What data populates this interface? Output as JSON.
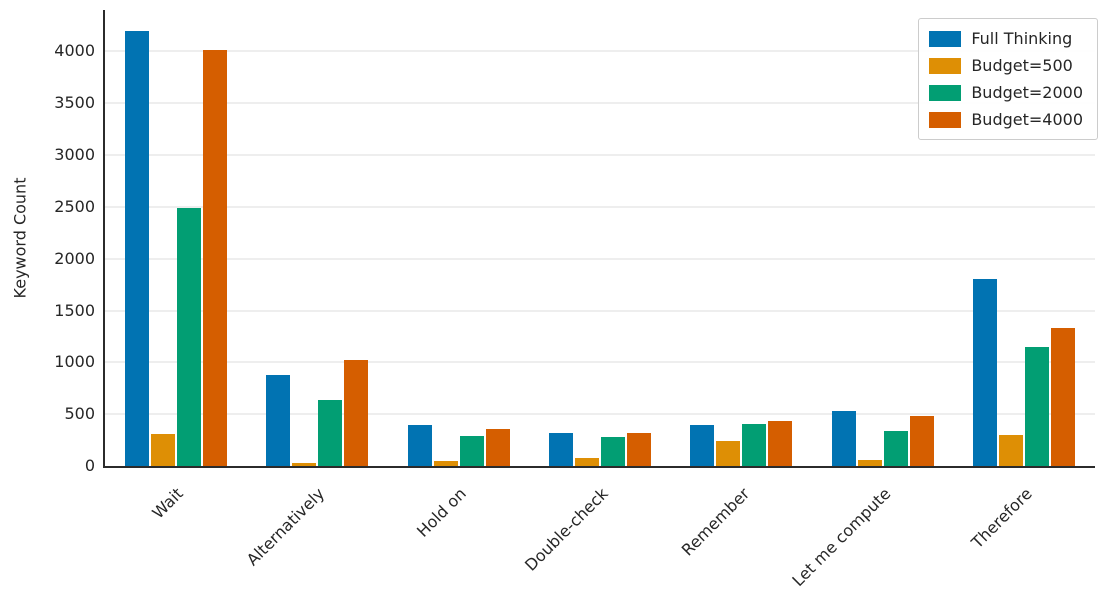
{
  "chart_data": {
    "type": "bar",
    "title": "",
    "xlabel": "",
    "ylabel": "Keyword Count",
    "categories": [
      "Wait",
      "Alternatively",
      "Hold on",
      "Double-check",
      "Remember",
      "Let me compute",
      "Therefore"
    ],
    "series": [
      {
        "name": "Full Thinking",
        "color": "#0173b2",
        "values": [
          4200,
          880,
          400,
          320,
          400,
          530,
          1800
        ]
      },
      {
        "name": "Budget=500",
        "color": "#de8f05",
        "values": [
          310,
          30,
          45,
          80,
          240,
          60,
          300
        ]
      },
      {
        "name": "Budget=2000",
        "color": "#029e73",
        "values": [
          2490,
          640,
          290,
          280,
          410,
          340,
          1150
        ]
      },
      {
        "name": "Budget=4000",
        "color": "#d55e00",
        "values": [
          4010,
          1020,
          360,
          320,
          430,
          480,
          1330
        ]
      }
    ],
    "ylim": [
      0,
      4400
    ],
    "yticks": [
      0,
      500,
      1000,
      1500,
      2000,
      2500,
      3000,
      3500,
      4000
    ],
    "grid": true,
    "legend_position": "upper right"
  }
}
